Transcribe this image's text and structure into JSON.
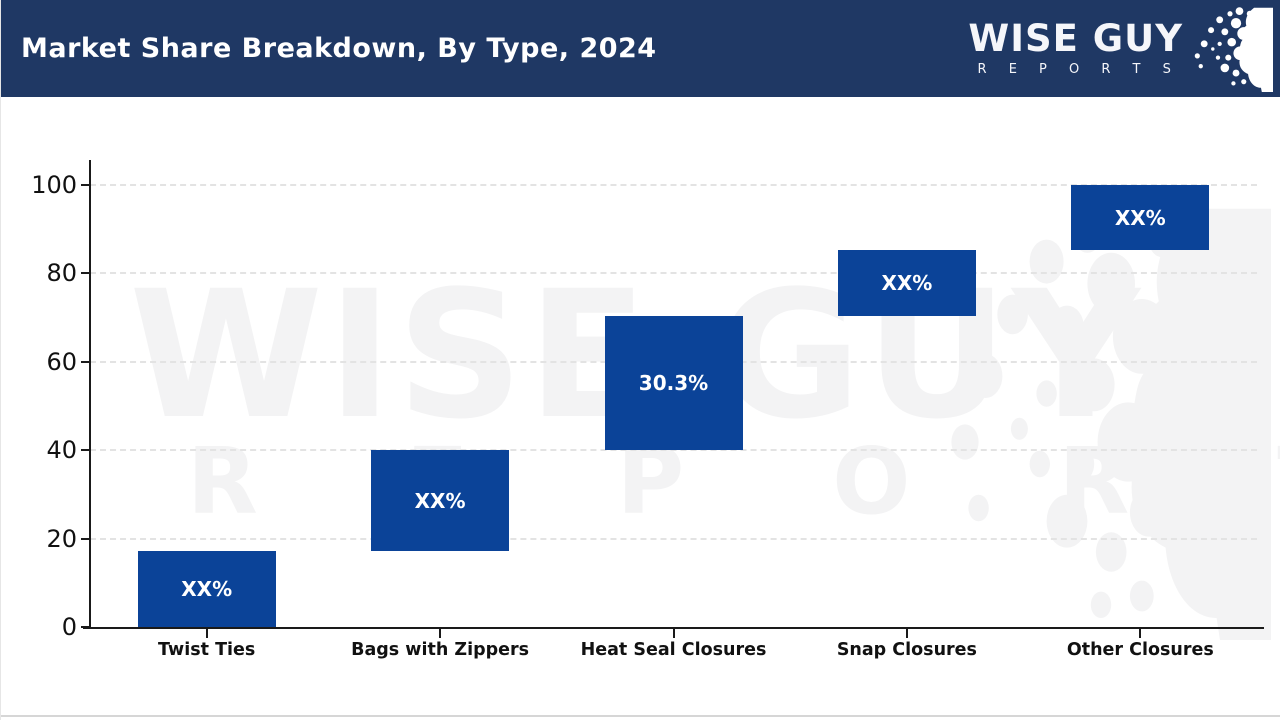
{
  "header": {
    "title": "Market Share Breakdown, By Type, 2024",
    "bg_color": "#1f3864",
    "logo": {
      "line1": "WISE GUY",
      "line2": "R E P O R T S"
    }
  },
  "watermark": {
    "line1": "WISE GUY",
    "line2": "R E P O R T S"
  },
  "chart_data": {
    "type": "bar",
    "subtype": "waterfall",
    "title": "Market Share Breakdown, By Type, 2024",
    "xlabel": "",
    "ylabel": "",
    "categories": [
      "Twist Ties",
      "Bags with Zippers",
      "Heat Seal Closures",
      "Snap Closures",
      "Other Closures"
    ],
    "segments": [
      {
        "category": "Twist Ties",
        "label": "XX%",
        "start": 0,
        "end": 17.2
      },
      {
        "category": "Bags with Zippers",
        "label": "XX%",
        "start": 17.2,
        "end": 40.0
      },
      {
        "category": "Heat Seal Closures",
        "label": "30.3%",
        "start": 40.0,
        "end": 70.3
      },
      {
        "category": "Snap Closures",
        "label": "XX%",
        "start": 70.3,
        "end": 85.2
      },
      {
        "category": "Other Closures",
        "label": "XX%",
        "start": 85.2,
        "end": 100.0
      }
    ],
    "y_ticks": [
      0,
      20,
      40,
      60,
      80,
      100
    ],
    "ylim": [
      0,
      105
    ],
    "grid": "dashed-horizontal",
    "legend": "none",
    "bar_color": "#0b4398",
    "bar_label_color": "#ffffff",
    "axis_color": "#1a1a1a"
  }
}
